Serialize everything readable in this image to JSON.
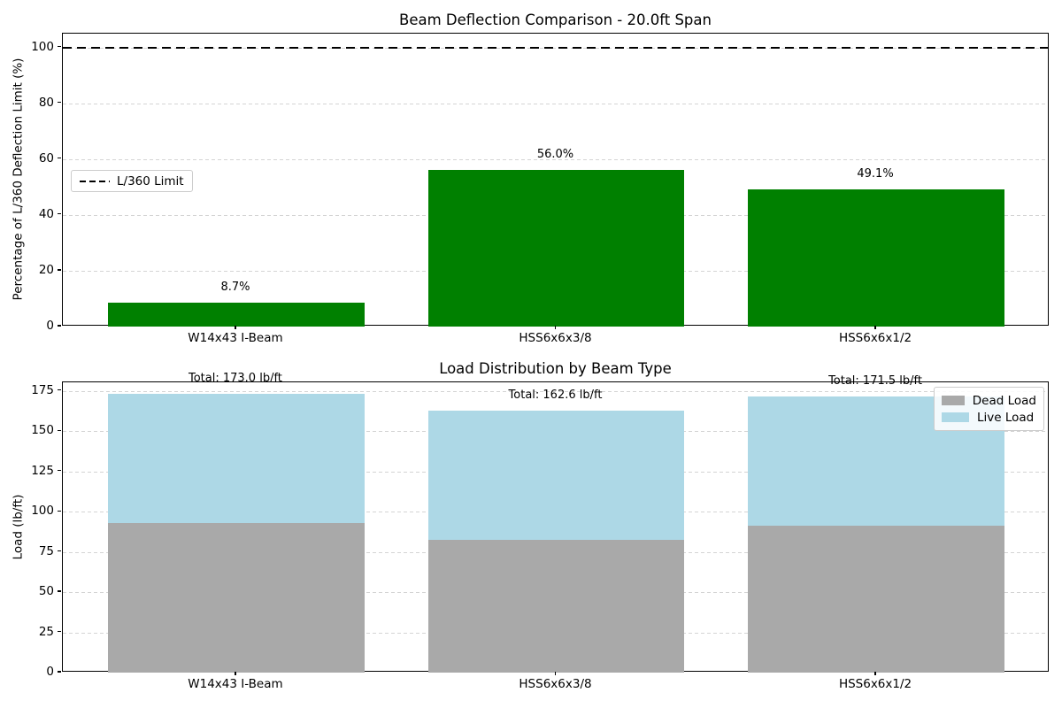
{
  "figure": {
    "background": "#ffffff"
  },
  "chart_data": [
    {
      "type": "bar",
      "title": "Beam Deflection Comparison - 20.0ft Span",
      "ylabel": "Percentage of L/360 Deflection Limit (%)",
      "xlabel": "",
      "categories": [
        "W14x43 I-Beam",
        "HSS6x6x3/8",
        "HSS6x6x1/2"
      ],
      "values": [
        8.7,
        56.0,
        49.1
      ],
      "value_labels": [
        "8.7%",
        "56.0%",
        "49.1%"
      ],
      "bar_color": "#008000",
      "yticks": [
        0,
        20,
        40,
        60,
        80,
        100
      ],
      "ylim": [
        0,
        105
      ],
      "grid": "y-dashed",
      "legend_position": "center-left",
      "limit_line": {
        "value": 100,
        "color": "#000000",
        "style": "dashed",
        "legend_label": "L/360 Limit"
      }
    },
    {
      "type": "stacked-bar",
      "title": "Load Distribution by Beam Type",
      "ylabel": "Load (lb/ft)",
      "xlabel": "",
      "categories": [
        "W14x43 I-Beam",
        "HSS6x6x3/8",
        "HSS6x6x1/2"
      ],
      "series": [
        {
          "name": "Dead Load",
          "values": [
            93.0,
            82.6,
            91.5
          ],
          "color": "#a9a9a9"
        },
        {
          "name": "Live Load",
          "values": [
            80.0,
            80.0,
            80.0
          ],
          "color": "#add8e6"
        }
      ],
      "totals": [
        173.0,
        162.6,
        171.5
      ],
      "total_labels": [
        "Total: 173.0 lb/ft",
        "Total: 162.6 lb/ft",
        "Total: 171.5 lb/ft"
      ],
      "yticks": [
        0,
        25,
        50,
        75,
        100,
        125,
        150,
        175
      ],
      "ylim": [
        0,
        180.4
      ],
      "grid": "y-dashed",
      "legend_position": "top-right"
    }
  ]
}
